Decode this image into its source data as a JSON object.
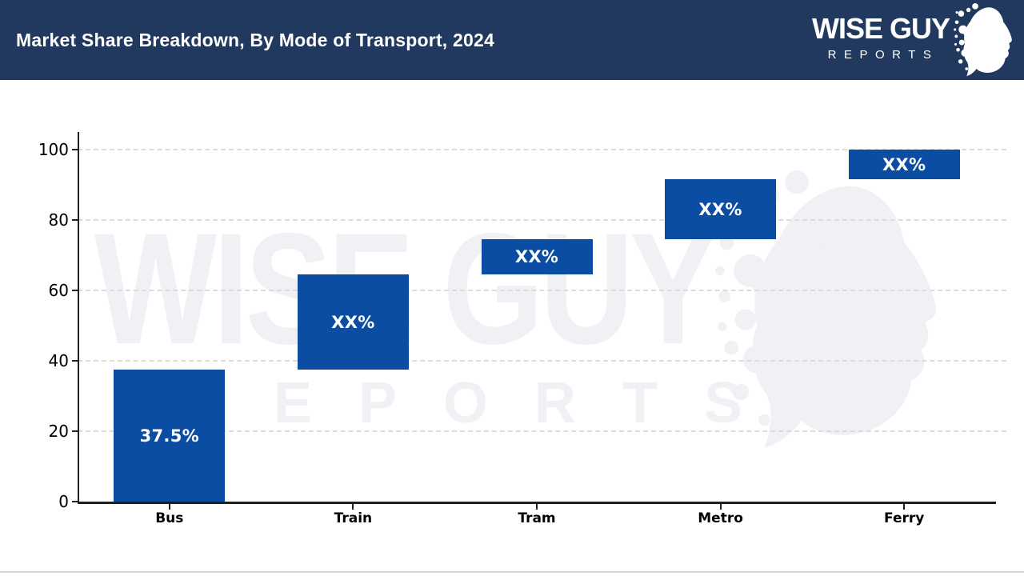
{
  "header": {
    "title": "Market Share Breakdown, By Mode of Transport, 2024",
    "logo": {
      "line1": "WISE GUY",
      "line2": "REPORTS"
    }
  },
  "watermark": {
    "line1": "WISE GUY",
    "line2": "REPORTS"
  },
  "colors": {
    "header_bg": "#21395f",
    "bar": "#0b4da2",
    "bar_label": "#ffffff",
    "grid": "#dcdcdc",
    "axis": "#1f1f1f",
    "watermark": "#f0f1f4"
  },
  "chart_data": {
    "type": "bar",
    "subtype": "waterfall",
    "title": "Market Share Breakdown, By Mode of Transport, 2024",
    "categories": [
      "Bus",
      "Train",
      "Tram",
      "Metro",
      "Ferry"
    ],
    "segments": [
      {
        "category": "Bus",
        "start": 0,
        "end": 37.5,
        "label": "37.5%"
      },
      {
        "category": "Train",
        "start": 37.5,
        "end": 64.5,
        "label": "XX%"
      },
      {
        "category": "Tram",
        "start": 64.5,
        "end": 74.5,
        "label": "XX%"
      },
      {
        "category": "Metro",
        "start": 74.5,
        "end": 91.5,
        "label": "XX%"
      },
      {
        "category": "Ferry",
        "start": 91.5,
        "end": 100,
        "label": "XX%"
      }
    ],
    "xlabel": "",
    "ylabel": "",
    "ylim": [
      0,
      100
    ],
    "yticks": [
      0,
      20,
      40,
      60,
      80,
      100
    ],
    "grid": "horizontal-dashed",
    "legend": "none"
  }
}
